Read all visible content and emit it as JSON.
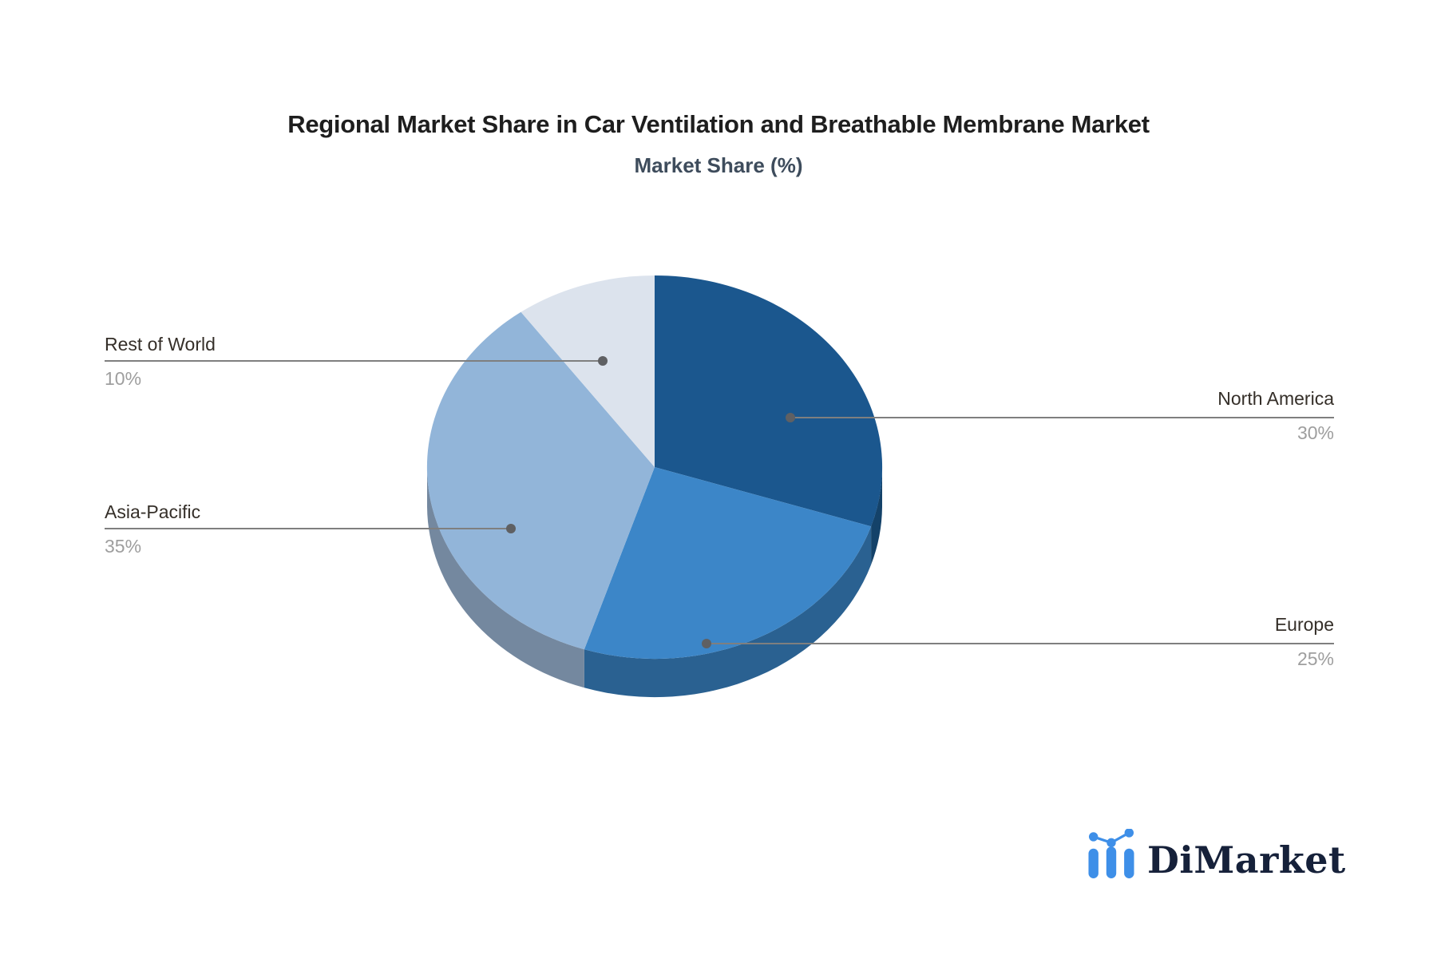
{
  "title": "Regional Market Share in Car Ventilation and Breathable Membrane Market",
  "subtitle": "Market Share (%)",
  "brand": {
    "name": "DiMarket",
    "accent_color": "#3e8fe8",
    "text_color": "#16213a"
  },
  "chart_data": {
    "type": "pie",
    "title": "Regional Market Share in Car Ventilation and Breathable Membrane Market",
    "subtitle": "Market Share (%)",
    "unit": "%",
    "effect": "3d",
    "start_angle_deg": 0,
    "direction": "clockwise",
    "legend_position": "outside-callouts",
    "slices": [
      {
        "label": "North America",
        "value": 30,
        "display": "30%",
        "color": "#1b578e",
        "depth_color": "#144269",
        "callout_side": "right"
      },
      {
        "label": "Europe",
        "value": 25,
        "display": "25%",
        "color": "#3c86c8",
        "depth_color": "#2a6191",
        "callout_side": "right"
      },
      {
        "label": "Asia-Pacific",
        "value": 35,
        "display": "35%",
        "color": "#92b5d9",
        "depth_color": "#74889f",
        "callout_side": "left"
      },
      {
        "label": "Rest of World",
        "value": 10,
        "display": "10%",
        "color": "#dce3ed",
        "depth_color": "#b9c4d4",
        "callout_side": "left"
      }
    ],
    "callout_line_color": "#7f7f7f",
    "callout_dot_color": "#5f6063"
  }
}
